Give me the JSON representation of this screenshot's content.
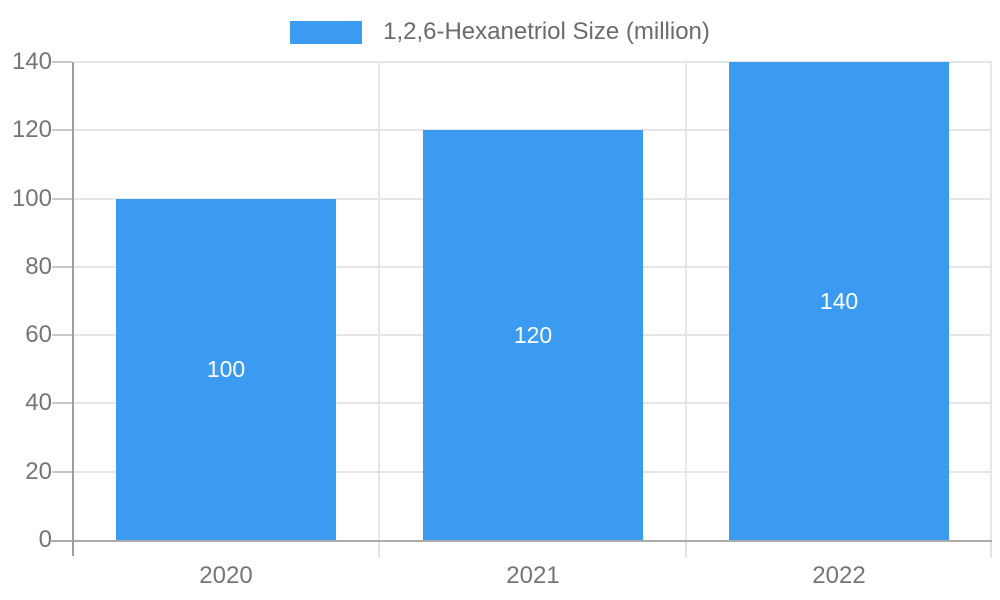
{
  "chart_data": {
    "type": "bar",
    "title": "",
    "xlabel": "",
    "ylabel": "",
    "categories": [
      "2020",
      "2021",
      "2022"
    ],
    "series": [
      {
        "name": "1,2,6-Hexanetriol Size (million)",
        "values": [
          100,
          120,
          140
        ]
      }
    ],
    "bar_value_labels": [
      "100",
      "120",
      "140"
    ],
    "ylim": [
      0,
      140
    ],
    "yticks": [
      0,
      20,
      40,
      60,
      80,
      100,
      120,
      140
    ],
    "grid": true,
    "legend_position": "top-center",
    "colors": {
      "bar": "#3A9BF0",
      "gridline": "#E6E6E6",
      "tick_stub": "#C9C9C9",
      "bottom_tick": "#E3E3E3",
      "axis": "#9E9E9E",
      "x_axis": "#ABABAB",
      "tick_text": "#757575",
      "legend_text": "#6B6B6B",
      "bar_label_text": "#FFFFFF",
      "background": "#FFFFFF"
    }
  }
}
